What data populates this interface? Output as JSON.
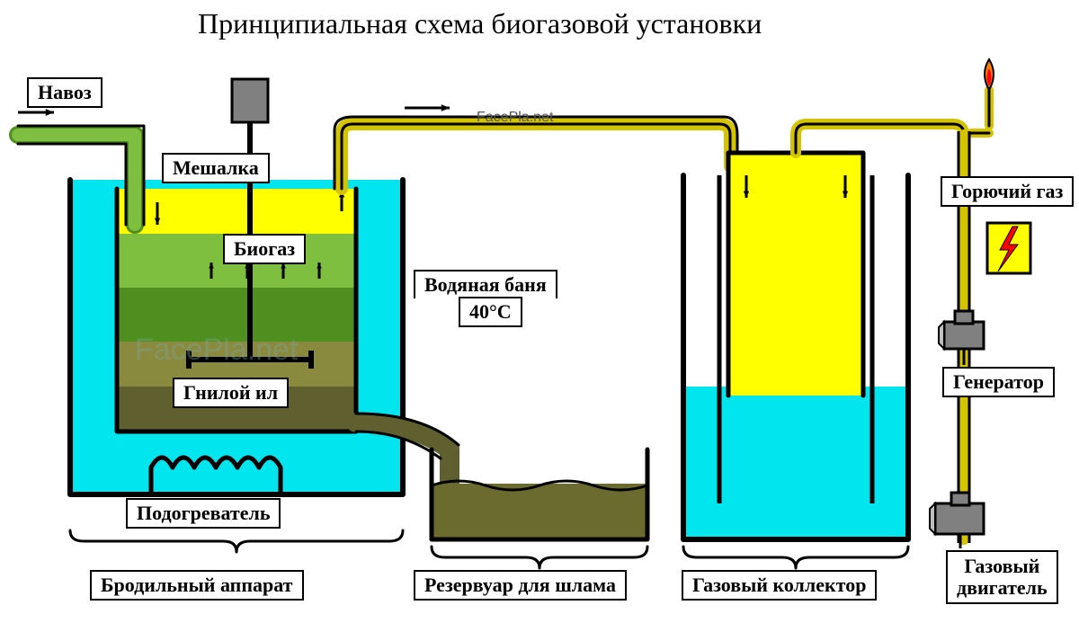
{
  "title": "Принципиальная схема биогазовой установки",
  "watermark": "FacePla.net",
  "labels": {
    "manure": "Навоз",
    "mixer": "Мешалка",
    "biogas": "Биогаз",
    "sludge": "Гнилой ил",
    "heater": "Подогреватель",
    "bath": "Водяная баня",
    "bath_temp": "40°C",
    "fermenter": "Бродильный аппарат",
    "sludge_tank": "Резервуар для шлама",
    "gas_collector": "Газовый коллектор",
    "combustible_gas": "Горючий газ",
    "generator": "Генератор",
    "gas_engine": "Газовый\nдвигатель"
  },
  "colors": {
    "water": "#00e5ee",
    "gas": "#ffff00",
    "green_light": "#7fbf3f",
    "green_dark": "#4f8f1f",
    "sludge_mid": "#8a8a3f",
    "sludge_dark": "#5f5f2f",
    "sludge_tank_fill": "#6b6b2f",
    "pipe_gas": "#d4c400",
    "grey": "#808080",
    "flame_outer": "#ff8000",
    "flame_inner": "#ff0000",
    "lightning_bg": "#ffff00",
    "lightning": "#ff0000",
    "outline": "#000000"
  },
  "layout": {
    "title_fontsize": 32,
    "label_fontsize": 22,
    "stroke_heavy": 5,
    "stroke_pipe": 8
  },
  "type": "flowchart"
}
